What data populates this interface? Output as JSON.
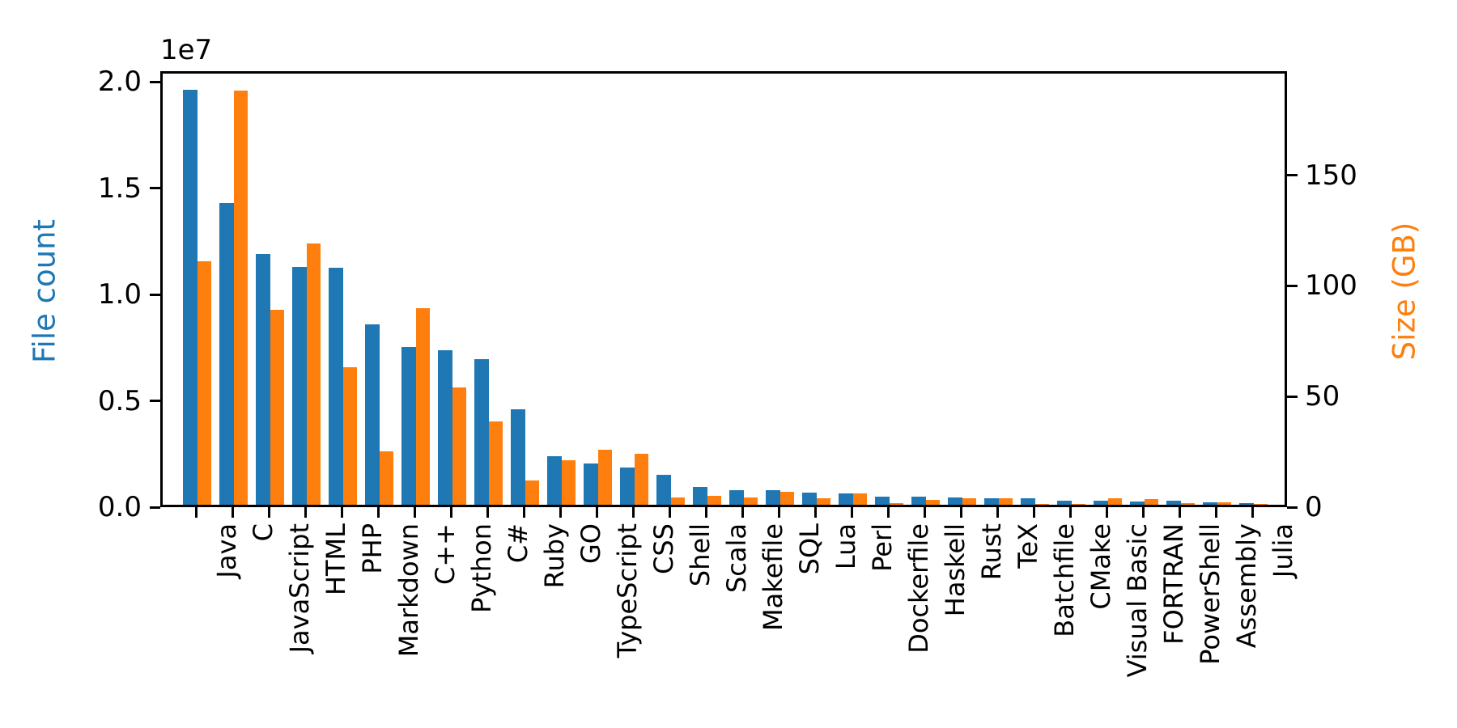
{
  "chart_data": {
    "type": "bar",
    "title": "",
    "description": "Dual-axis grouped bar chart of file count (blue, left axis) and size in GB (orange, right axis) per programming language",
    "categories": [
      "Java",
      "C",
      "JavaScript",
      "HTML",
      "PHP",
      "Markdown",
      "C++",
      "Python",
      "C#",
      "Ruby",
      "GO",
      "TypeScript",
      "CSS",
      "Shell",
      "Scala",
      "Makefile",
      "SQL",
      "Lua",
      "Perl",
      "Dockerfile",
      "Haskell",
      "Rust",
      "TeX",
      "Batchfile",
      "CMake",
      "Visual Basic",
      "FORTRAN",
      "PowerShell",
      "Assembly",
      "Julia"
    ],
    "series": [
      {
        "name": "File count",
        "axis": "left",
        "color": "#1f77b4",
        "values": [
          19500000,
          14200000,
          11800000,
          11200000,
          11150000,
          8500000,
          7400000,
          7250000,
          6850000,
          4500000,
          2300000,
          1950000,
          1750000,
          1400000,
          840000,
          680000,
          690000,
          580000,
          550000,
          390000,
          370000,
          350000,
          310000,
          300000,
          190000,
          210000,
          170000,
          185000,
          130000,
          75000
        ]
      },
      {
        "name": "Size (GB)",
        "axis": "right",
        "color": "#ff7f0e",
        "values": [
          110,
          187,
          88,
          118,
          62,
          24,
          89,
          53,
          37.5,
          11,
          20,
          25,
          23,
          3.2,
          4,
          3.2,
          5.7,
          2.8,
          5,
          0.8,
          2.1,
          2.9,
          3,
          0.4,
          0.3,
          2.8,
          2.5,
          0.9,
          1.1,
          0.5
        ]
      }
    ],
    "left_axis": {
      "label": "File count",
      "color": "#1f77b4",
      "offset_text": "1e7",
      "tick_labels": [
        "0.0",
        "0.5",
        "1.0",
        "1.5",
        "2.0"
      ],
      "tick_values": [
        0,
        5000000,
        10000000,
        15000000,
        20000000
      ],
      "max": 20500000
    },
    "right_axis": {
      "label": "Size (GB)",
      "color": "#ff7f0e",
      "tick_labels": [
        "0",
        "50",
        "100",
        "150"
      ],
      "tick_values": [
        0,
        50,
        100,
        150
      ],
      "max": 197
    },
    "grid": false,
    "legend": "none",
    "bar_colors": {
      "file_count": "#1f77b4",
      "size_gb": "#ff7f0e"
    }
  }
}
